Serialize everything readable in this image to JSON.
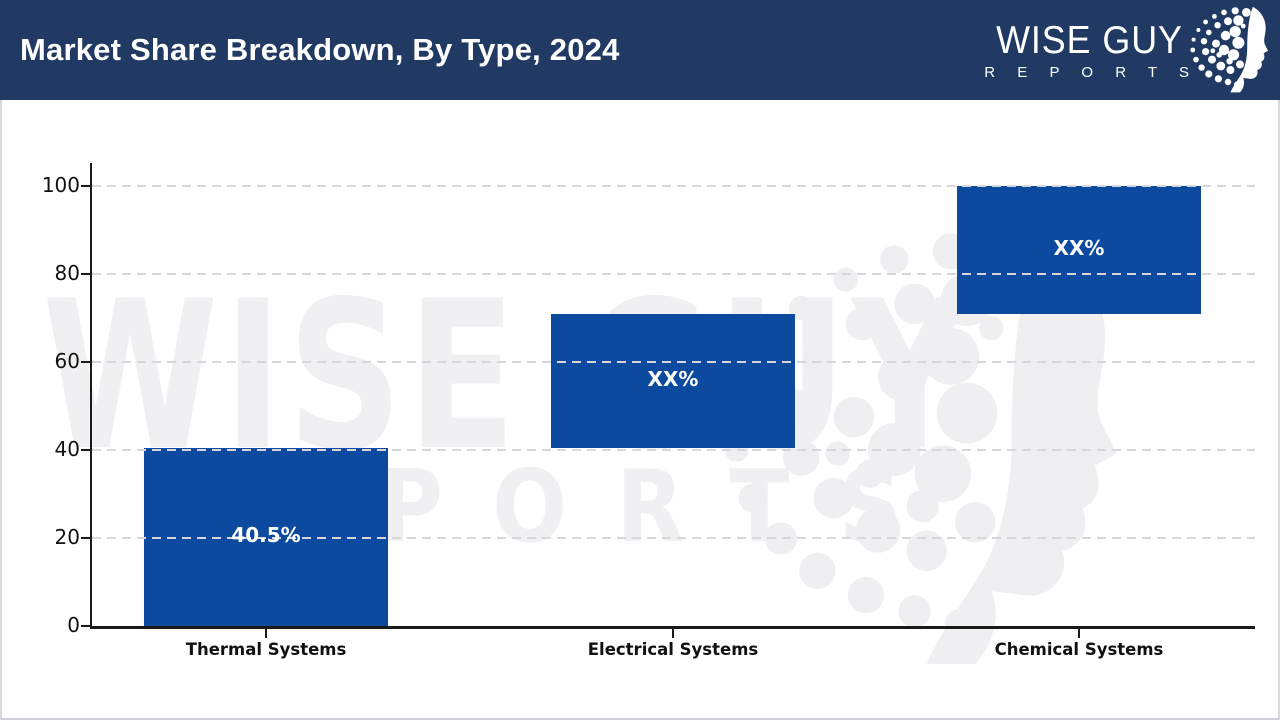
{
  "header": {
    "title": "Market Share Breakdown, By Type, 2024",
    "logo": {
      "wordmark": "WISE GUY",
      "sub": "R E P O R T S"
    }
  },
  "watermark": {
    "line1": "WISE GUY",
    "line2": "REPORTS"
  },
  "chart_data": {
    "type": "bar",
    "subtype": "waterfall-stacked-breakdown",
    "title": "Market Share Breakdown, By Type, 2024",
    "categories": [
      "Thermal Systems",
      "Electrical Systems",
      "Chemical Systems"
    ],
    "bars": [
      {
        "category": "Thermal Systems",
        "start": 0,
        "end": 40.5,
        "label": "40.5%"
      },
      {
        "category": "Electrical Systems",
        "start": 40.5,
        "end": 71,
        "label": "XX%"
      },
      {
        "category": "Chemical Systems",
        "start": 71,
        "end": 100,
        "label": "XX%"
      }
    ],
    "y_ticks": [
      0,
      20,
      40,
      60,
      80,
      100
    ],
    "ylim": [
      0,
      105
    ],
    "xlabel": "",
    "ylabel": "",
    "grid": "horizontal-dashed",
    "legend": "none",
    "bar_color": "#0b4a9f",
    "bar_label_color": "#ffffff"
  },
  "colors": {
    "header_bg": "#213a63",
    "bar": "#0b4a9f",
    "gridline": "#d6d6db",
    "axis": "#1a1a1a",
    "watermark": "#f0f0f3"
  }
}
